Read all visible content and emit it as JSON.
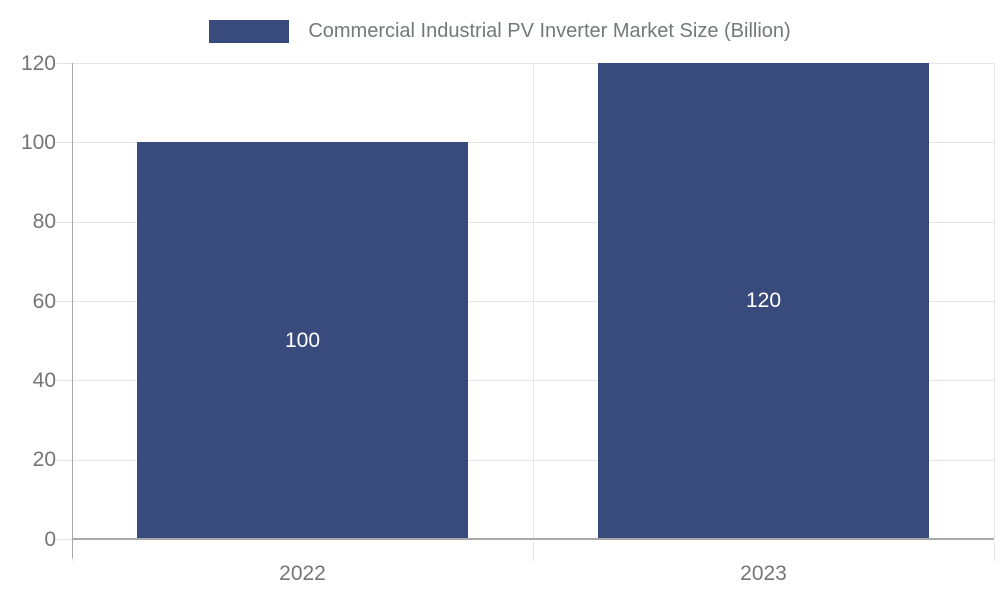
{
  "chart_data": {
    "type": "bar",
    "categories": [
      "2022",
      "2023"
    ],
    "values": [
      100,
      120
    ],
    "series_name": "Commercial Industrial PV Inverter Market Size (Billion)",
    "title": "",
    "xlabel": "",
    "ylabel": "",
    "ylim": [
      0,
      120
    ],
    "ytick_step": 20,
    "ytick_labels": [
      "0",
      "20",
      "40",
      "60",
      "80",
      "100",
      "120"
    ],
    "grid": "horizontal gridlines on, category boundary verticals on",
    "legend_position": "top-center",
    "value_labels": [
      "100",
      "120"
    ],
    "colors": {
      "bar": "#394a7d",
      "value_label": "#ffffff",
      "gridline": "#e6e6e6",
      "axis_line": "#a8a8a8",
      "tick_label": "#757575",
      "legend_text": "#75787b",
      "background": "#ffffff"
    }
  }
}
